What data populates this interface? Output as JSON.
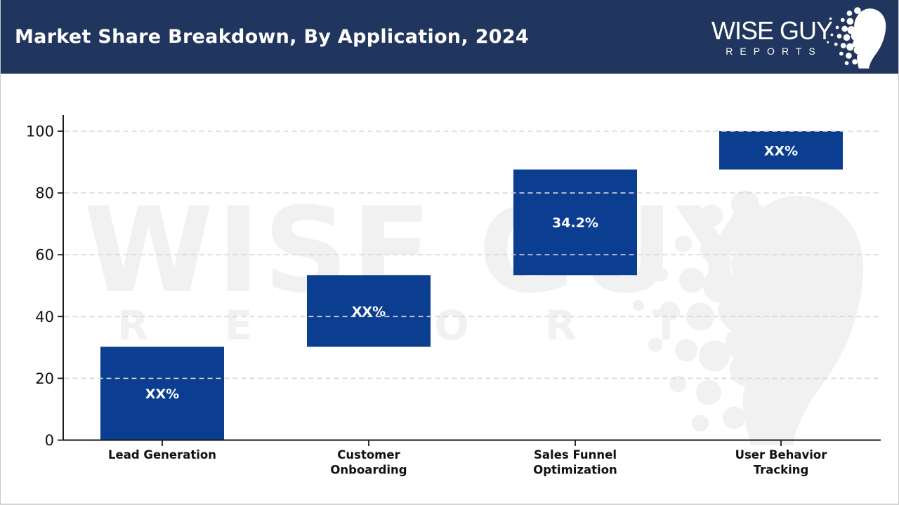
{
  "header": {
    "title": "Market Share Breakdown, By Application, 2024",
    "bg_color": "#21365e",
    "logo_line1": "WISE GUY",
    "logo_line2": "REPORTS"
  },
  "watermark": {
    "line1": "WISE GUY",
    "line2": "R E P O R T S",
    "color": "#f1f1f2"
  },
  "chart_data": {
    "type": "bar",
    "subtype": "waterfall",
    "title": "Market Share Breakdown, By Application, 2024",
    "categories": [
      "Lead Generation",
      "Customer Onboarding",
      "Sales Funnel Optimization",
      "User Behavior Tracking"
    ],
    "segments": [
      {
        "category": "Lead Generation",
        "start": 0,
        "end": 30.2,
        "value": 30.2,
        "label": "XX%"
      },
      {
        "category": "Customer Onboarding",
        "start": 30.2,
        "end": 53.4,
        "value": 23.2,
        "label": "XX%"
      },
      {
        "category": "Sales Funnel Optimization",
        "start": 53.4,
        "end": 87.6,
        "value": 34.2,
        "label": "34.2%"
      },
      {
        "category": "User Behavior Tracking",
        "start": 87.6,
        "end": 100,
        "value": 12.4,
        "label": "XX%"
      }
    ],
    "y_ticks": [
      0,
      20,
      40,
      60,
      80,
      100
    ],
    "ylim": [
      0,
      105
    ],
    "xlabel": "",
    "ylabel": "",
    "grid": "horizontal-dashed",
    "grid_color": "#d8d8d8",
    "bar_color": "#0b3d91",
    "bar_label_color": "#ffffff",
    "axis_color": "#1a1a1a",
    "legend": "none"
  }
}
